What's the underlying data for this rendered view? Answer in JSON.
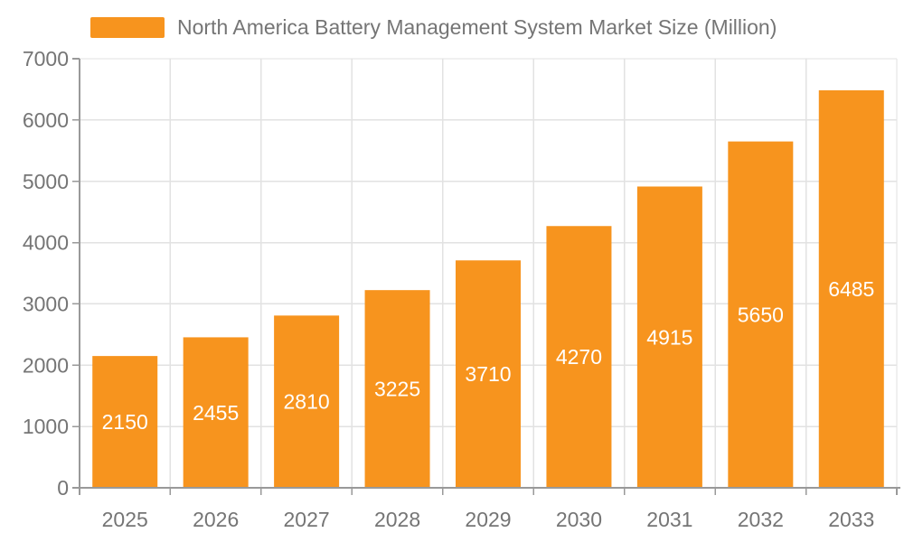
{
  "legend": {
    "label": "North America Battery Management System Market Size (Million)"
  },
  "chart_data": {
    "type": "bar",
    "title": "North America Battery Management System Market Size (Million)",
    "series_name": "North America Battery Management System Market Size (Million)",
    "categories": [
      "2025",
      "2026",
      "2027",
      "2028",
      "2029",
      "2030",
      "2031",
      "2032",
      "2033"
    ],
    "values": [
      2150,
      2455,
      2810,
      3225,
      3710,
      4270,
      4915,
      5650,
      6485
    ],
    "xlabel": "",
    "ylabel": "",
    "ylim": [
      0,
      7000
    ],
    "ytick_interval": 1000,
    "yticks": [
      0,
      1000,
      2000,
      3000,
      4000,
      5000,
      6000,
      7000
    ],
    "grid": true,
    "legend_position": "top",
    "data_labels_position": "inside-center",
    "colors": {
      "bar": "#F7941E",
      "axis_line": "#999999",
      "grid_line": "#E2E2E2",
      "tick_label": "#757575",
      "data_label": "#FFFFFF",
      "legend_text": "#757575",
      "background": "#FFFFFF"
    }
  }
}
